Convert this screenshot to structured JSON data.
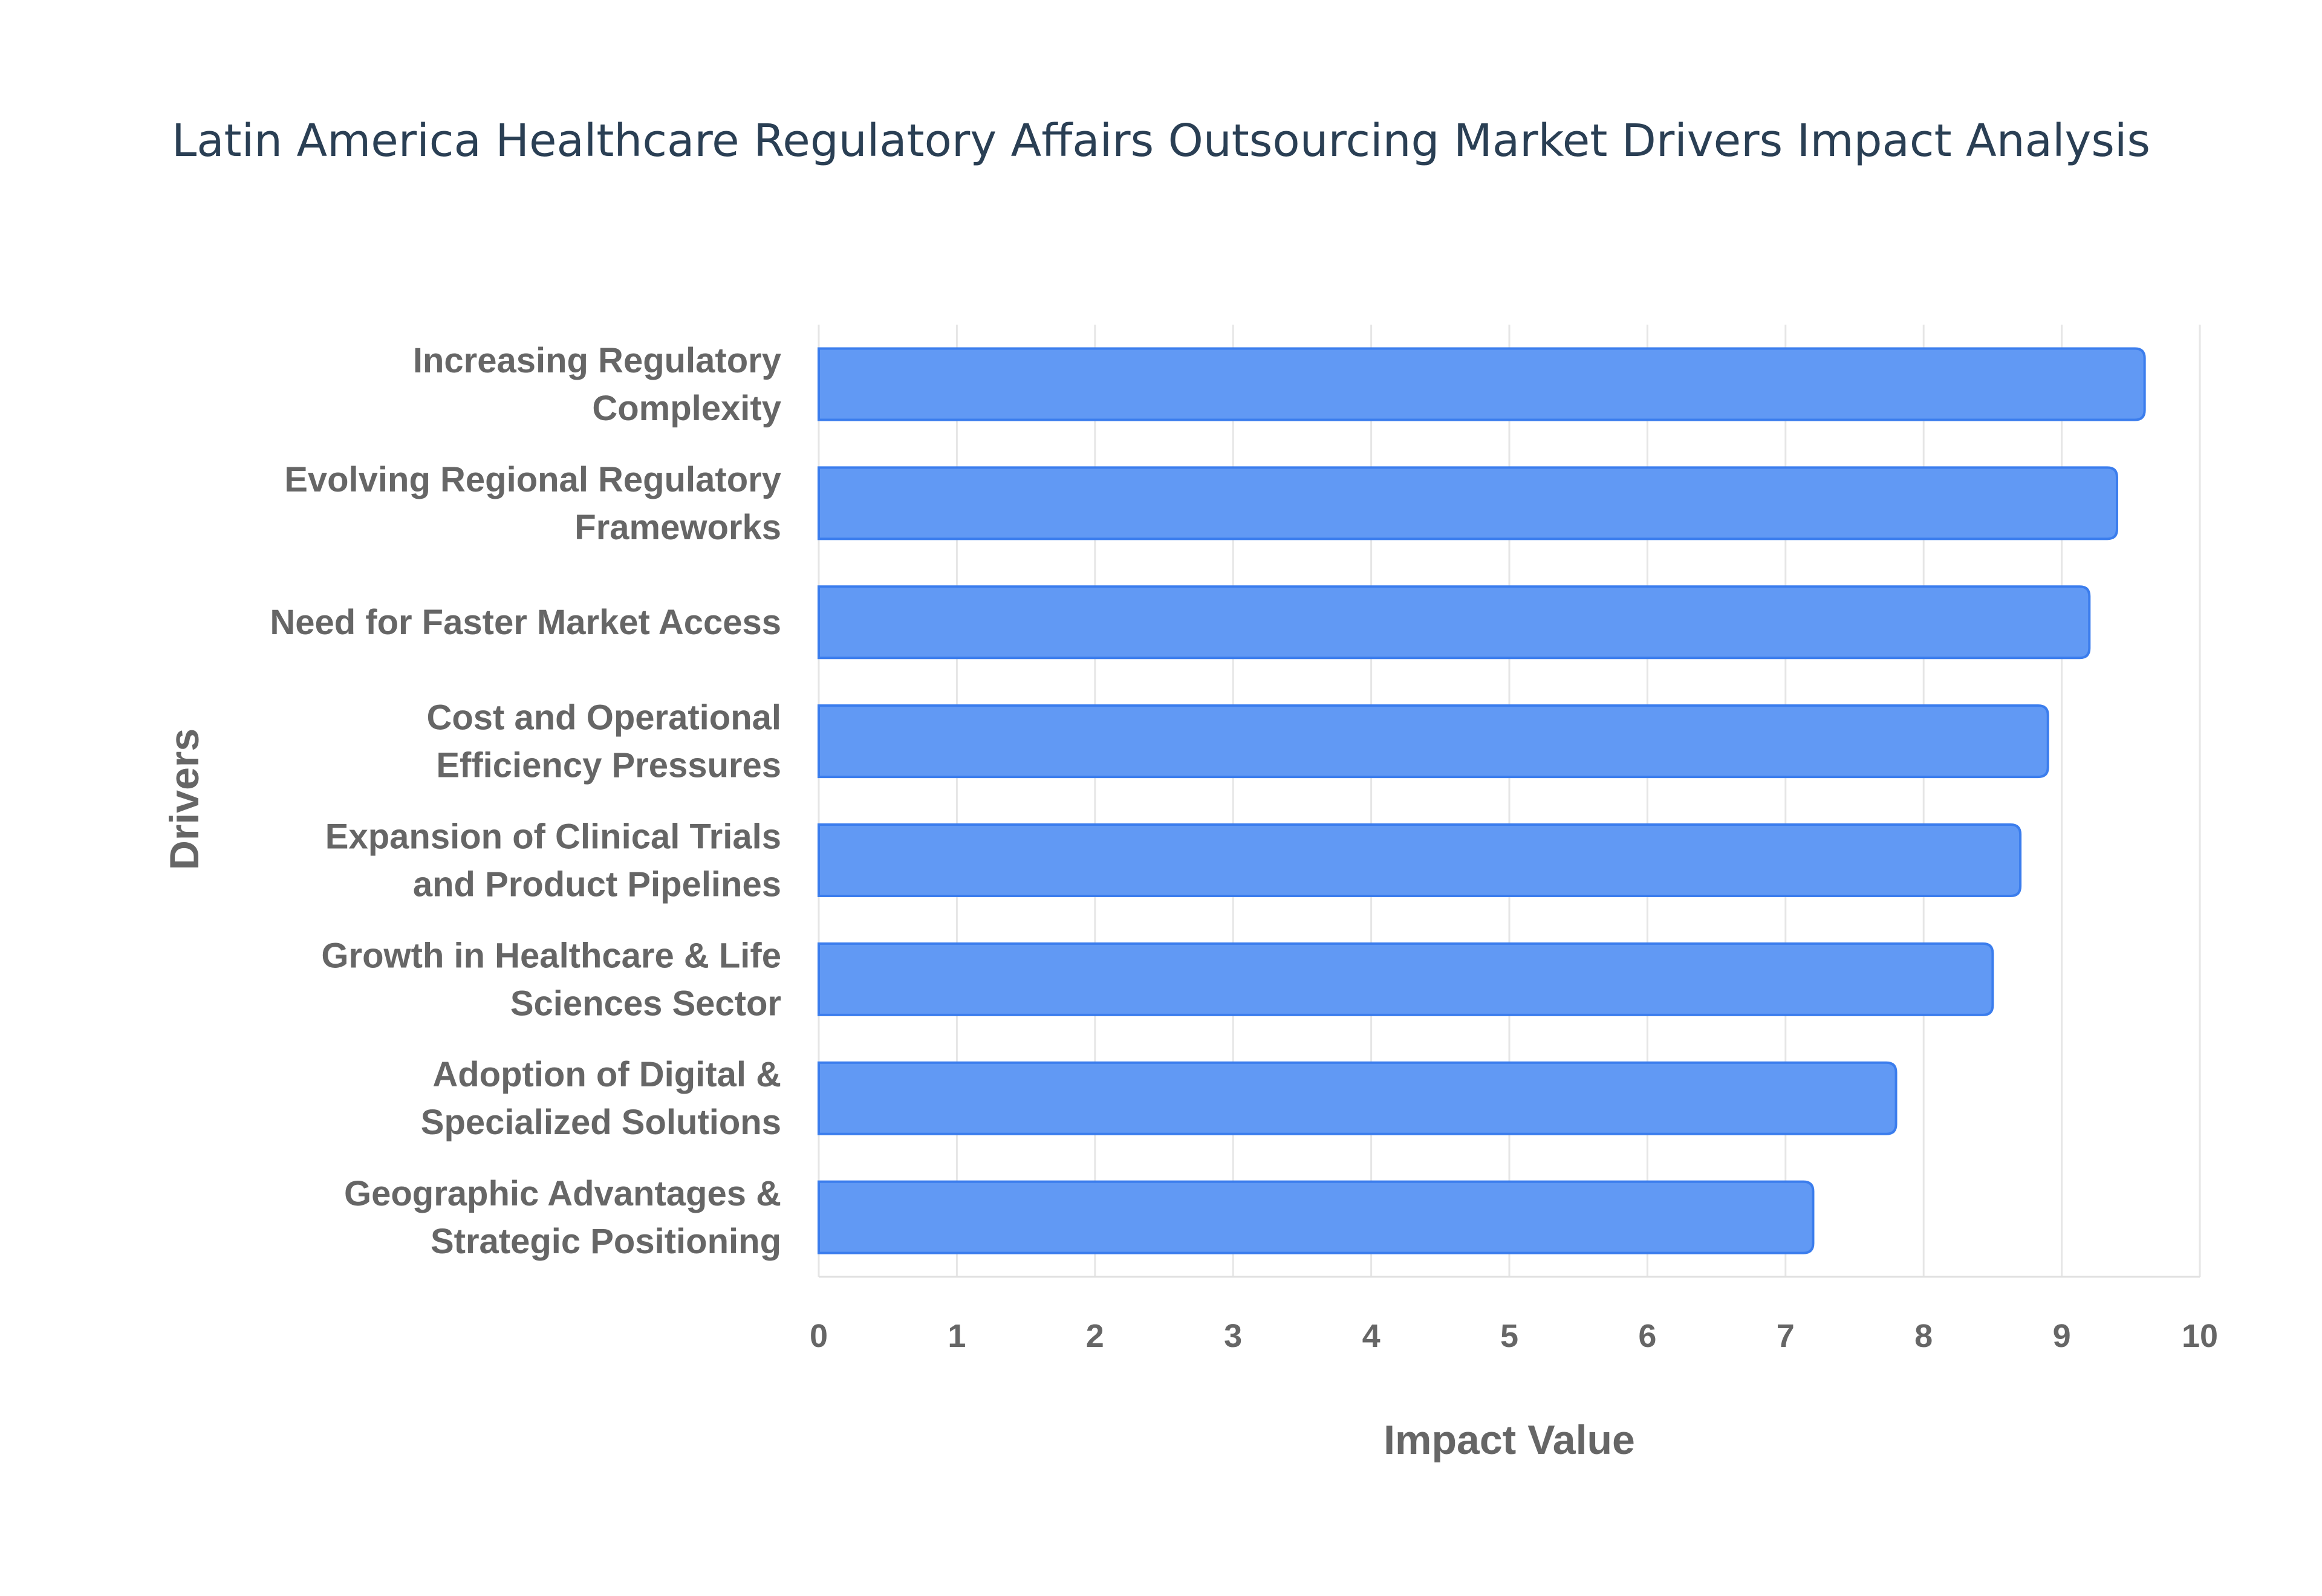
{
  "chart_data": {
    "type": "bar",
    "orientation": "horizontal",
    "title": "Latin America Healthcare Regulatory Affairs Outsourcing Market Drivers Impact Analysis",
    "xlabel": "Impact Value",
    "ylabel": "Drivers",
    "xlim": [
      0,
      10
    ],
    "xticks": [
      "0",
      "1",
      "2",
      "3",
      "4",
      "5",
      "6",
      "7",
      "8",
      "9",
      "10"
    ],
    "grid": true,
    "bar_color": "#6199f4",
    "bar_border_color": "#3b7ded",
    "categories": [
      [
        "Increasing Regulatory",
        "Complexity"
      ],
      [
        "Evolving Regional Regulatory",
        "Frameworks"
      ],
      [
        "Need for Faster Market Access"
      ],
      [
        "Cost and Operational",
        "Efficiency Pressures"
      ],
      [
        "Expansion of Clinical Trials",
        "and Product Pipelines"
      ],
      [
        "Growth in Healthcare & Life",
        "Sciences Sector"
      ],
      [
        "Adoption of Digital &",
        "Specialized Solutions"
      ],
      [
        "Geographic Advantages &",
        "Strategic Positioning"
      ]
    ],
    "values": [
      9.6,
      9.4,
      9.2,
      8.9,
      8.7,
      8.5,
      7.8,
      7.2
    ]
  }
}
